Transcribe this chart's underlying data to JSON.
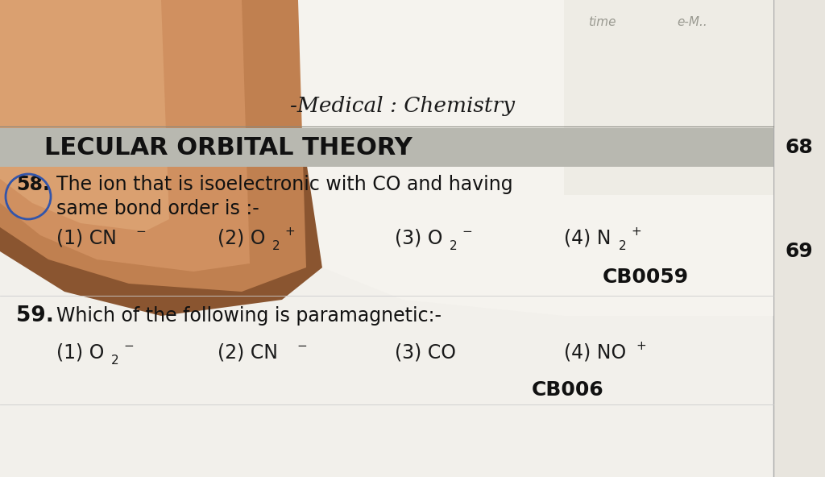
{
  "paper_color": "#f2f0eb",
  "hand_color_main": "#c4956a",
  "hand_color_dark": "#9e6c42",
  "hand_color_shadow": "#7a5030",
  "section_bg": "#b8b8b0",
  "right_col_bg": "#e8e5de",
  "header_text": "-Medical : Chemistry",
  "section_label": "LECULAR ORBITAL THEORY",
  "num_68": "68",
  "num_69": "69",
  "q58_num": "58.",
  "q58_line1": "The ion that is isoelectronic with CO and having",
  "q58_line2": "same bond order is :-",
  "cb_code": "CB0059",
  "q59_num": "59.",
  "q59_line1": "Which of the following is paramagnetic:-",
  "bottom_partial": "CB006",
  "top_text1": "time",
  "top_text2": "e-M..",
  "text_color": "#1a1a1a",
  "line_color": "#888880"
}
